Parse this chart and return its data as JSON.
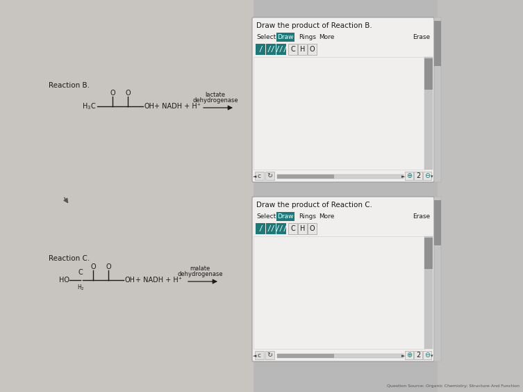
{
  "bg_color": "#b8b8b8",
  "left_bg": "#c8c4c0",
  "right_bg": "#c0bfbe",
  "panel_white": "#f0efee",
  "teal_btn": "#1e7878",
  "teal_bond": "#1e7878",
  "text_dark": "#1a1a1a",
  "text_mid": "#444444",
  "gray_btn": "#d8d5d2",
  "scrollbar_track": "#c4c4c4",
  "scrollbar_thumb": "#909090",
  "zoom_btn_bg": "#e8e6e4",
  "zoom_icon_color": "#1e7878",
  "bond_area_bg": "#1e7878",
  "atom_btn_bg": "#e8e6e4",
  "bottom_btn_bg": "#e0dedc",
  "hscroll_fill": "#a0a0a0",
  "hscroll_track": "#d0d0d0",
  "panel_b_title": "Draw the product of Reaction B.",
  "panel_c_title": "Draw the product of Reaction C.",
  "rxn_b_label": "Reaction B.",
  "rxn_b_enzyme1": "lactate",
  "rxn_b_enzyme2": "dehydrogenase",
  "rxn_c_label": "Reaction C.",
  "rxn_c_enzyme1": "malate",
  "rxn_c_enzyme2": "dehydrogenase",
  "nadh_text": "+ NADH + H⁺",
  "footer": "Question Source: Organic Chemistry: Structure And Function"
}
